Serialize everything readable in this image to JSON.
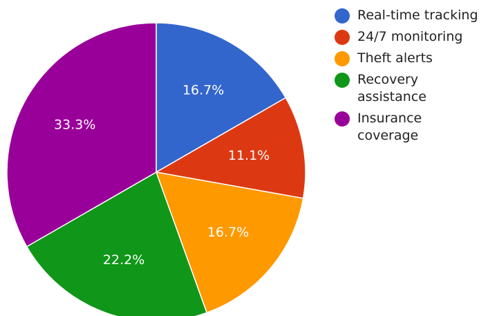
{
  "chart_data": {
    "type": "pie",
    "slices": [
      {
        "name": "Real-time tracking",
        "label": "16.7%",
        "value": 16.7,
        "color": "#3366cc"
      },
      {
        "name": "24/7 monitoring",
        "label": "11.1%",
        "value": 11.1,
        "color": "#dc3912"
      },
      {
        "name": "Theft alerts",
        "label": "16.7%",
        "value": 16.7,
        "color": "#ff9900"
      },
      {
        "name": "Recovery assistance",
        "label": "22.2%",
        "value": 22.2,
        "color": "#109618"
      },
      {
        "name": "Insurance coverage",
        "label": "33.3%",
        "value": 33.3,
        "color": "#990099"
      }
    ],
    "legend_position": "right"
  }
}
